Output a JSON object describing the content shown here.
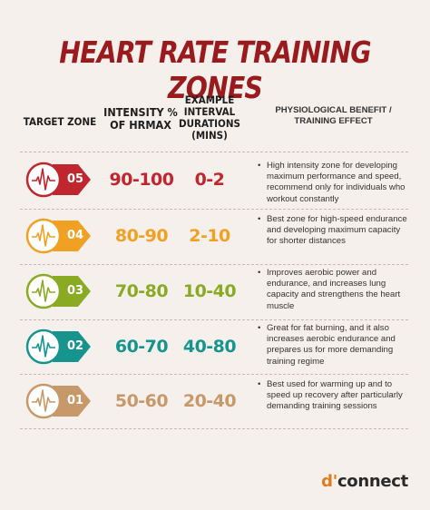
{
  "title": "HEART RATE TRAINING ZONES",
  "headers": {
    "target_zone": "TARGET ZONE",
    "intensity": "INTENSITY % OF HRmax",
    "durations": "EXAMPLE INTERVAL DURATIONS (MINS)",
    "benefit": "PHYSIOLOGICAL BENEFIT / TRAINING EFFECT"
  },
  "zones": [
    {
      "zone": "05",
      "intensity": "90-100",
      "duration": "0-2",
      "benefit": "High intensity zone for developing maximum performance and speed, recommend only for individuals who workout constantly",
      "color": "#c0262d"
    },
    {
      "zone": "04",
      "intensity": "80-90",
      "duration": "2-10",
      "benefit": "Best zone for high-speed endurance and developing maximum capacity for shorter distances",
      "color": "#f0a124"
    },
    {
      "zone": "03",
      "intensity": "70-80",
      "duration": "10-40",
      "benefit": "Improves aerobic power and endurance, and increases lung capacity and strengthens the heart muscle",
      "color": "#8aaa24"
    },
    {
      "zone": "02",
      "intensity": "60-70",
      "duration": "40-80",
      "benefit": "Great for fat burning, and it also increases aerobic endurance and prepares us for more demanding training regime",
      "color": "#18948f"
    },
    {
      "zone": "01",
      "intensity": "50-60",
      "duration": "20-40",
      "benefit": "Best used for warming up and to speed up recovery after particularly demanding training sessions",
      "color": "#c7996a"
    }
  ],
  "bullet": "•",
  "logo": {
    "prefix": "d'",
    "name": "connect"
  },
  "icons": {
    "zone_badge": "heartbeat-icon"
  }
}
